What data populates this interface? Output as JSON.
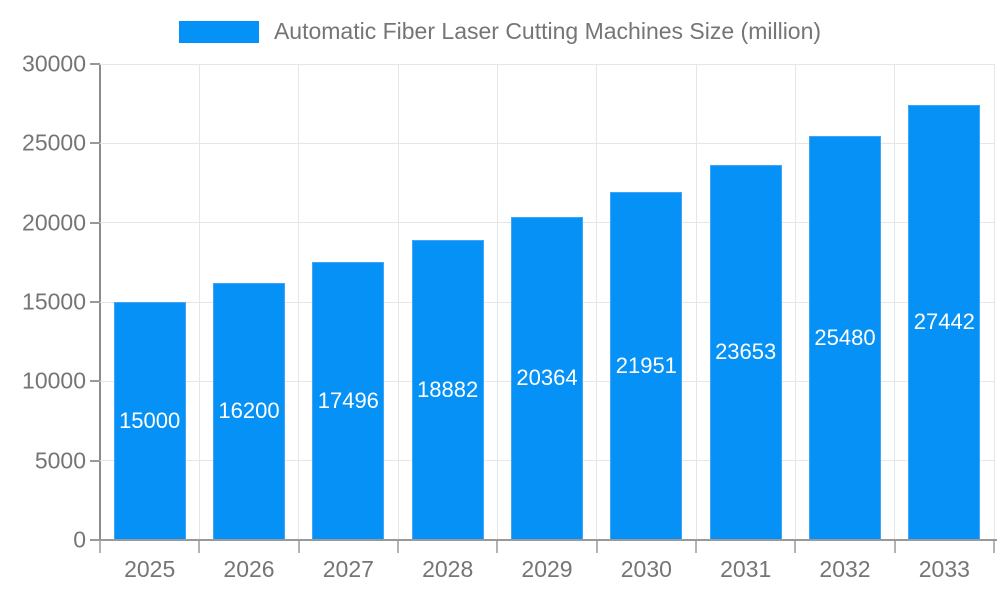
{
  "chart_data": {
    "type": "bar",
    "title": "Automatic Fiber Laser Cutting Machines Size (million)",
    "categories": [
      "2025",
      "2026",
      "2027",
      "2028",
      "2029",
      "2030",
      "2031",
      "2032",
      "2033"
    ],
    "values": [
      15000,
      16200,
      17496,
      18882,
      20364,
      21951,
      23653,
      25480,
      27442
    ],
    "xlabel": "",
    "ylabel": "",
    "ylim": [
      0,
      30000
    ],
    "yticks": [
      0,
      5000,
      10000,
      15000,
      20000,
      25000,
      30000
    ],
    "grid": true,
    "legend_position": "top",
    "bar_color": "#0591f5",
    "bar_border_color": "#42a4f5",
    "bar_label_color": "#ffffff",
    "axis_color": "#999999",
    "gridline_color": "#e6e6e6",
    "tick_label_color": "#757575"
  }
}
